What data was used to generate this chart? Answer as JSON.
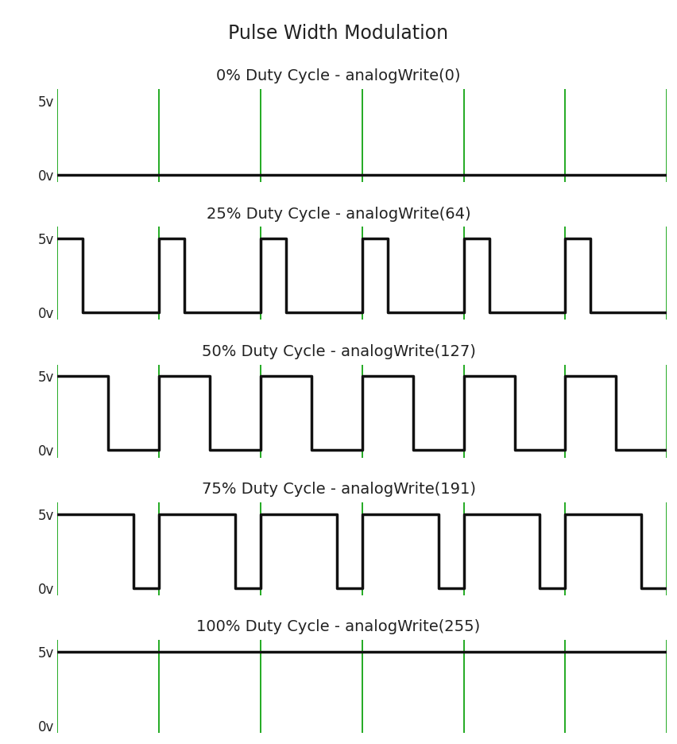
{
  "title": "Pulse Width Modulation",
  "title_fontsize": 17,
  "subtitle_fontsize": 14,
  "background_color": "#ffffff",
  "signal_color": "#111111",
  "grid_color": "#22aa22",
  "label_color": "#222222",
  "panels": [
    {
      "label": "0% Duty Cycle - analogWrite(0)",
      "duty": 0.0
    },
    {
      "label": "25% Duty Cycle - analogWrite(64)",
      "duty": 0.25
    },
    {
      "label": "50% Duty Cycle - analogWrite(127)",
      "duty": 0.5
    },
    {
      "label": "75% Duty Cycle - analogWrite(191)",
      "duty": 0.75
    },
    {
      "label": "100% Duty Cycle - analogWrite(255)",
      "duty": 1.0
    }
  ],
  "num_periods": 6,
  "period": 1.0,
  "ylim_low": -0.5,
  "ylim_high": 5.8,
  "yticks": [
    0,
    5
  ],
  "yticklabels": [
    "0v",
    "5v"
  ],
  "signal_lw": 2.5,
  "grid_lw": 1.4,
  "tick_fontsize": 12
}
